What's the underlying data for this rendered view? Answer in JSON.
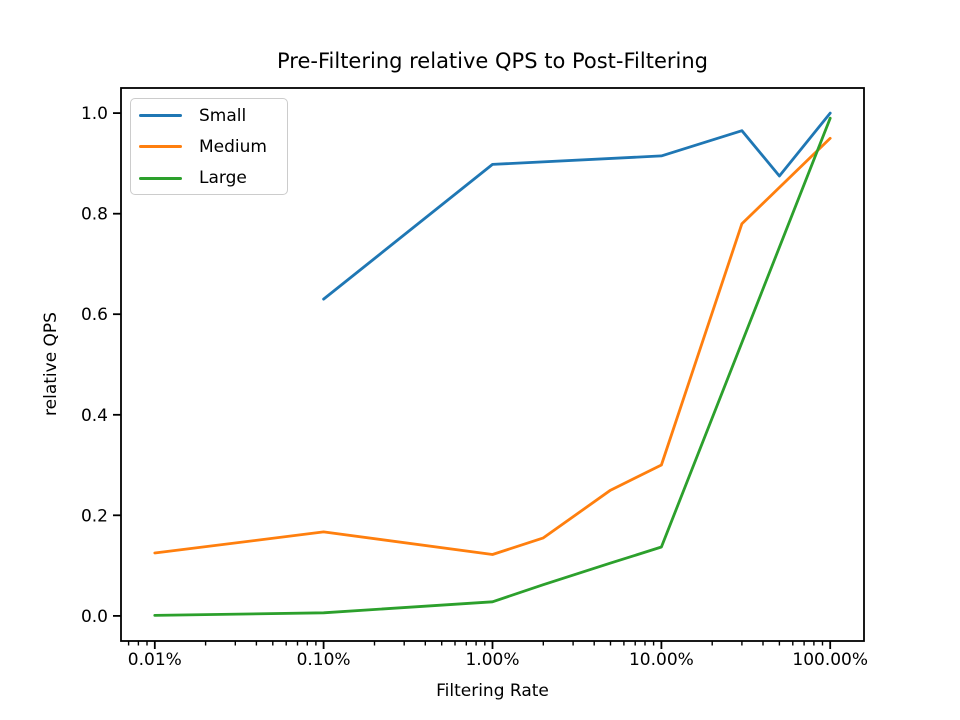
{
  "chart_data": {
    "type": "line",
    "title": "Pre-Filtering relative QPS to Post-Filtering",
    "xlabel": "Filtering Rate",
    "ylabel": "relative QPS",
    "x_scale": "log",
    "x_units": "percent",
    "xlim_log10": [
      -2.2,
      2.2
    ],
    "ylim": [
      -0.05,
      1.05
    ],
    "grid": false,
    "background": "#ffffff",
    "spine_color": "#000000",
    "x_ticks": [
      {
        "value": 0.01,
        "label": "0.01%"
      },
      {
        "value": 0.1,
        "label": "0.10%"
      },
      {
        "value": 1,
        "label": "1.00%"
      },
      {
        "value": 10,
        "label": "10.00%"
      },
      {
        "value": 100,
        "label": "100.00%"
      }
    ],
    "y_ticks": [
      {
        "value": 0.0,
        "label": "0.0"
      },
      {
        "value": 0.2,
        "label": "0.2"
      },
      {
        "value": 0.4,
        "label": "0.4"
      },
      {
        "value": 0.6,
        "label": "0.6"
      },
      {
        "value": 0.8,
        "label": "0.8"
      },
      {
        "value": 1.0,
        "label": "1.0"
      }
    ],
    "legend": {
      "position": "upper left"
    },
    "series": [
      {
        "name": "Small",
        "color": "#1f77b4",
        "points": [
          [
            0.1,
            0.63
          ],
          [
            1,
            0.898
          ],
          [
            10,
            0.915
          ],
          [
            30,
            0.965
          ],
          [
            50,
            0.875
          ],
          [
            100,
            1.0
          ]
        ]
      },
      {
        "name": "Medium",
        "color": "#ff7f0e",
        "points": [
          [
            0.01,
            0.125
          ],
          [
            0.1,
            0.167
          ],
          [
            1,
            0.122
          ],
          [
            2,
            0.155
          ],
          [
            5,
            0.25
          ],
          [
            10,
            0.3
          ],
          [
            30,
            0.78
          ],
          [
            100,
            0.95
          ]
        ]
      },
      {
        "name": "Large",
        "color": "#2ca02c",
        "points": [
          [
            0.01,
            0.001
          ],
          [
            0.1,
            0.006
          ],
          [
            1,
            0.028
          ],
          [
            2,
            0.062
          ],
          [
            5,
            0.105
          ],
          [
            10,
            0.137
          ],
          [
            100,
            0.99
          ]
        ]
      }
    ]
  }
}
